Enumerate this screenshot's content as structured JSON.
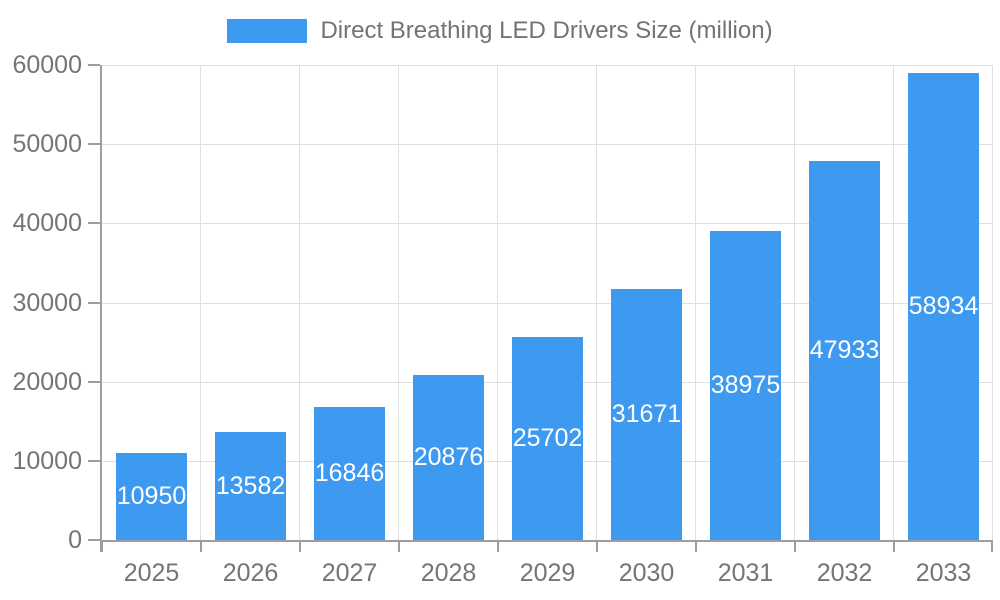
{
  "chart_data": {
    "type": "bar",
    "title": "Direct Breathing LED Drivers Size (million)",
    "legend_position": "top",
    "categories": [
      "2025",
      "2026",
      "2027",
      "2028",
      "2029",
      "2030",
      "2031",
      "2032",
      "2033"
    ],
    "series": [
      {
        "name": "Direct Breathing LED Drivers Size (million)",
        "values": [
          10950,
          13582,
          16846,
          20876,
          25702,
          31671,
          38975,
          47933,
          58934
        ]
      }
    ],
    "xlabel": "",
    "ylabel": "",
    "ylim": [
      0,
      60000
    ],
    "yticks": [
      0,
      10000,
      20000,
      30000,
      40000,
      50000,
      60000
    ],
    "grid": true,
    "data_labels": "inside-center-white",
    "colors": {
      "bar": "#3d9af0",
      "bar_label": "#ffffff",
      "axis_text": "#757575",
      "legend_text": "#737373",
      "grid_line": "#e0e0e0",
      "axis_line": "#9e9e9e"
    }
  }
}
